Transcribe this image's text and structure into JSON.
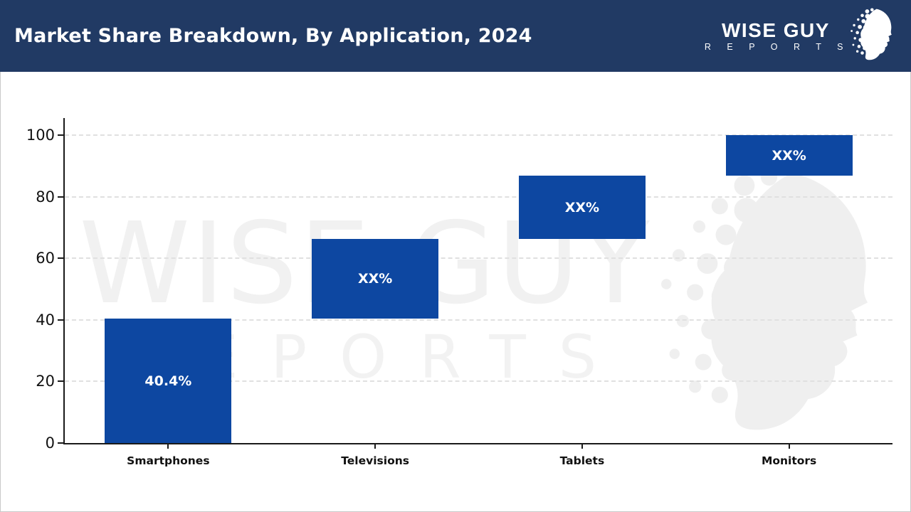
{
  "header": {
    "bg": "#213a64",
    "title": "Market Share Breakdown, By Application, 2024",
    "brand": {
      "name_line": "WISE GUY",
      "reports_line": "R E P O R T S"
    }
  },
  "watermark": {
    "line1": "WISE GUY",
    "line2": "REPORTS"
  },
  "chart_data": {
    "type": "bar",
    "subtype": "waterfall",
    "title": "Market Share Breakdown, By Application, 2024",
    "categories": [
      "Smartphones",
      "Televisions",
      "Tablets",
      "Monitors"
    ],
    "segments": [
      {
        "category": "Smartphones",
        "start": 0,
        "end": 40.4,
        "label": "40.4%"
      },
      {
        "category": "Televisions",
        "start": 40.4,
        "end": 66.2,
        "label": "XX%"
      },
      {
        "category": "Tablets",
        "start": 66.2,
        "end": 86.8,
        "label": "XX%"
      },
      {
        "category": "Monitors",
        "start": 86.8,
        "end": 100,
        "label": "XX%"
      }
    ],
    "xlabel": "",
    "ylabel": "",
    "yticks": [
      0,
      20,
      40,
      60,
      80,
      100
    ],
    "ylim": [
      0,
      105.5
    ],
    "grid": "horizontal-dashed",
    "legend": "none",
    "bar_color": "#0d47a1",
    "bar_label_color": "#ffffff",
    "axis_color": "#1a1a1a"
  }
}
